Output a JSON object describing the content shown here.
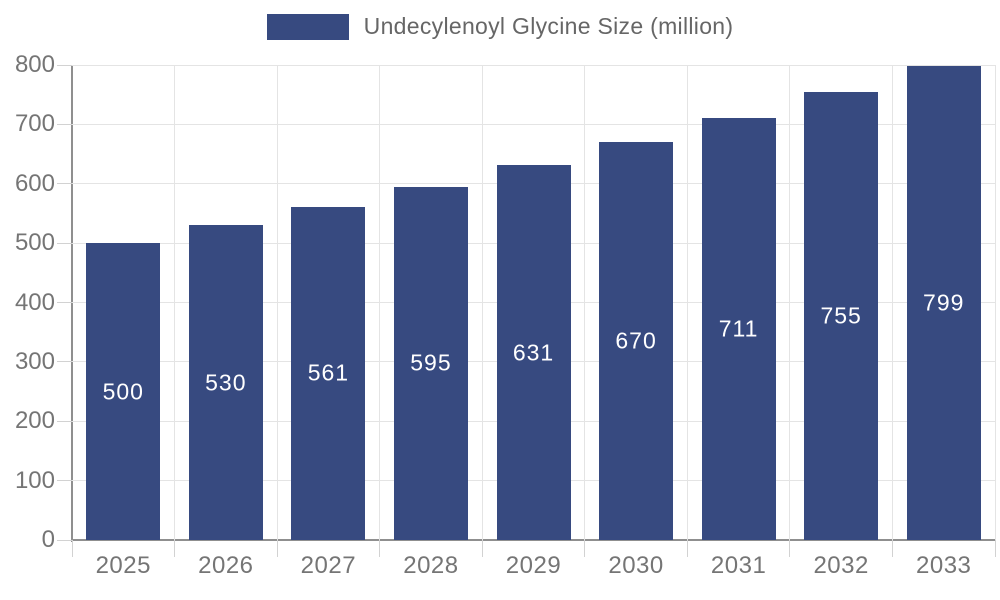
{
  "chart_data": {
    "type": "bar",
    "title": "Undecylenoyl Glycine Size (million)",
    "categories": [
      "2025",
      "2026",
      "2027",
      "2028",
      "2029",
      "2030",
      "2031",
      "2032",
      "2033"
    ],
    "values": [
      500,
      530,
      561,
      595,
      631,
      670,
      711,
      755,
      799
    ],
    "xlabel": "",
    "ylabel": "",
    "ylim": [
      0,
      800
    ],
    "yticks": [
      0,
      100,
      200,
      300,
      400,
      500,
      600,
      700,
      800
    ],
    "grid": true,
    "legend_position": "top-center",
    "value_labels": "inside-center-white",
    "colors": {
      "bar": "#374a80",
      "grid": "#e4e4e4",
      "axis": "#8f8f8f",
      "tick": "#d2d2d2",
      "axis_text": "#757575",
      "legend_text": "#666666",
      "value_text": "#ffffff",
      "background": "#ffffff"
    }
  }
}
